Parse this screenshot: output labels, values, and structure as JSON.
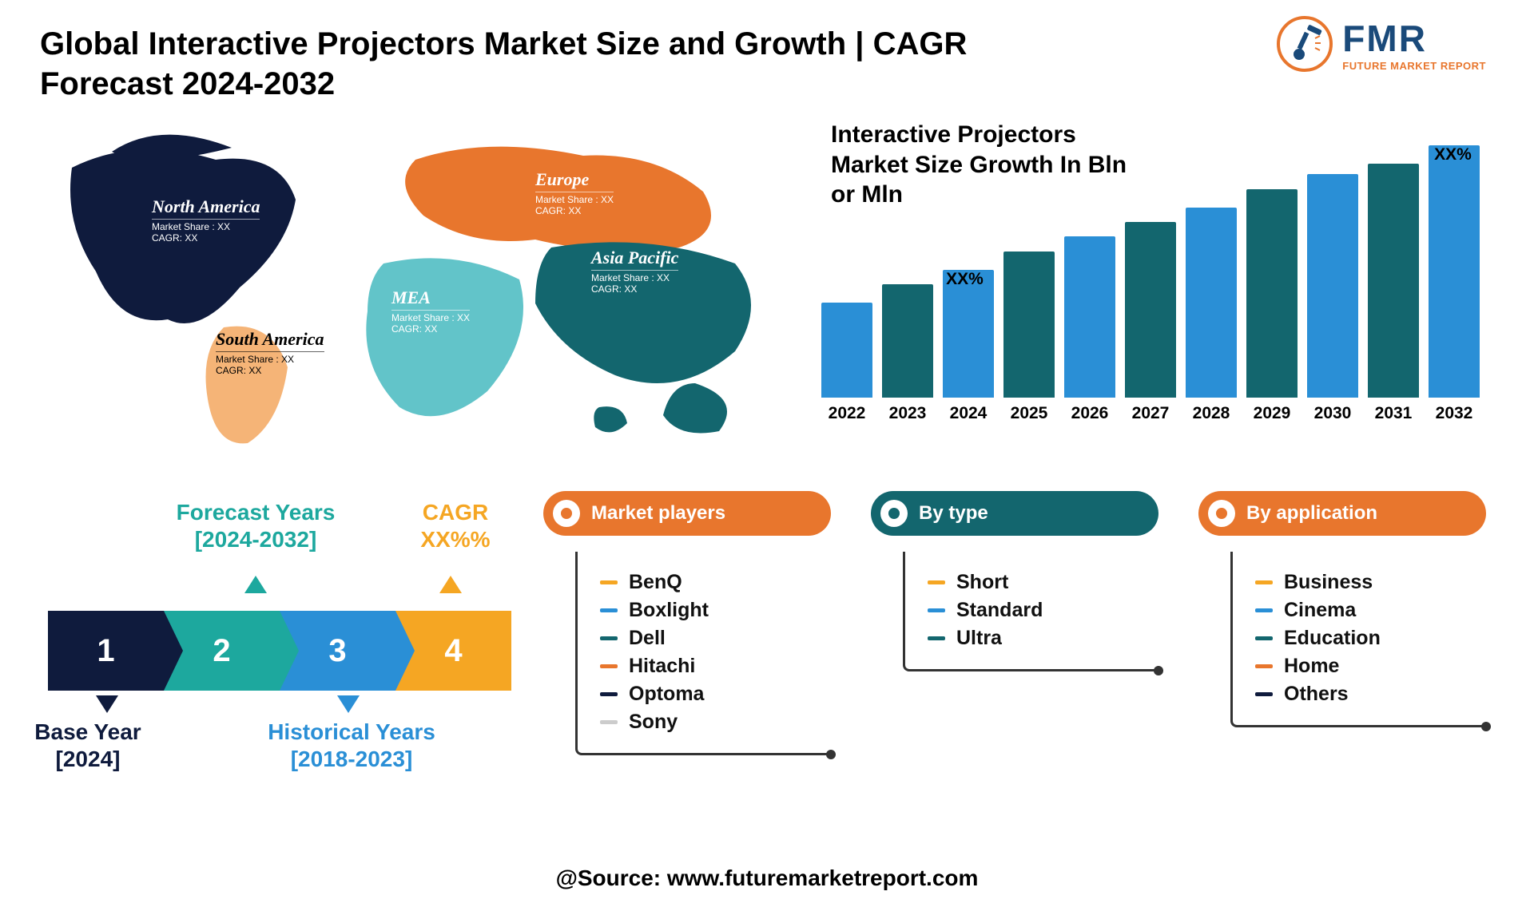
{
  "title": "Global Interactive Projectors  Market Size and Growth | CAGR Forecast 2024-2032",
  "logo": {
    "main": "FMR",
    "sub": "FUTURE MARKET REPORT"
  },
  "map": {
    "regions": {
      "north_america": {
        "name": "North America",
        "share": "Market Share : XX",
        "cagr": "CAGR: XX",
        "color": "#0f1b3d"
      },
      "south_america": {
        "name": "South America",
        "share": "Market Share : XX",
        "cagr": "CAGR: XX",
        "color": "#f5b477"
      },
      "europe": {
        "name": "Europe",
        "share": "Market Share : XX",
        "cagr": "CAGR: XX",
        "color": "#e8762d"
      },
      "mea": {
        "name": "MEA",
        "share": "Market Share : XX",
        "cagr": "CAGR: XX",
        "color": "#62c4c9"
      },
      "asia_pacific": {
        "name": "Asia Pacific",
        "share": "Market Share : XX",
        "cagr": "CAGR: XX",
        "color": "#13666e"
      }
    }
  },
  "chart": {
    "title": "Interactive Projectors Market Size Growth In Bln or Mln",
    "type": "bar",
    "years": [
      "2022",
      "2023",
      "2024",
      "2025",
      "2026",
      "2027",
      "2028",
      "2029",
      "2030",
      "2031",
      "2032"
    ],
    "values": [
      130,
      155,
      175,
      200,
      220,
      240,
      260,
      285,
      305,
      320,
      345
    ],
    "ylim_max": 360,
    "colors": [
      "#2a8fd6",
      "#13666e",
      "#2a8fd6",
      "#13666e",
      "#2a8fd6",
      "#13666e",
      "#2a8fd6",
      "#13666e",
      "#2a8fd6",
      "#13666e",
      "#2a8fd6"
    ],
    "annotations": {
      "2024": "XX%",
      "2032": "XX%"
    },
    "label_fontsize": 21,
    "bar_gap": 12
  },
  "timeline": {
    "steps": [
      {
        "num": "1",
        "color": "#0f1b3d"
      },
      {
        "num": "2",
        "color": "#1da89e"
      },
      {
        "num": "3",
        "color": "#2a8fd6"
      },
      {
        "num": "4",
        "color": "#f5a623"
      }
    ],
    "labels": {
      "forecast": {
        "line1": "Forecast Years",
        "line2": "[2024-2032]",
        "color": "#1da89e"
      },
      "cagr": {
        "line1": "CAGR",
        "line2": "XX%%",
        "color": "#f5a623"
      },
      "base": {
        "line1": "Base Year",
        "line2": "[2024]",
        "color": "#0f1b3d"
      },
      "hist": {
        "line1": "Historical Years",
        "line2": "[2018-2023]",
        "color": "#2a8fd6"
      }
    }
  },
  "cards": [
    {
      "title": "Market players",
      "header_color": "#e8762d",
      "items": [
        {
          "label": "BenQ",
          "dash": "#f5a623"
        },
        {
          "label": "Boxlight",
          "dash": "#2a8fd6"
        },
        {
          "label": "Dell",
          "dash": "#13666e"
        },
        {
          "label": "Hitachi",
          "dash": "#e8762d"
        },
        {
          "label": "Optoma",
          "dash": "#0f1b3d"
        },
        {
          "label": "Sony",
          "dash": "#cccccc"
        }
      ]
    },
    {
      "title": "By type",
      "header_color": "#13666e",
      "items": [
        {
          "label": "Short",
          "dash": "#f5a623"
        },
        {
          "label": "Standard",
          "dash": "#2a8fd6"
        },
        {
          "label": "Ultra",
          "dash": "#13666e"
        }
      ]
    },
    {
      "title": "By application",
      "header_color": "#e8762d",
      "items": [
        {
          "label": "Business",
          "dash": "#f5a623"
        },
        {
          "label": "Cinema",
          "dash": "#2a8fd6"
        },
        {
          "label": "Education",
          "dash": "#13666e"
        },
        {
          "label": "Home",
          "dash": "#e8762d"
        },
        {
          "label": "Others",
          "dash": "#0f1b3d"
        }
      ]
    }
  ],
  "source": "@Source: www.futuremarketreport.com"
}
